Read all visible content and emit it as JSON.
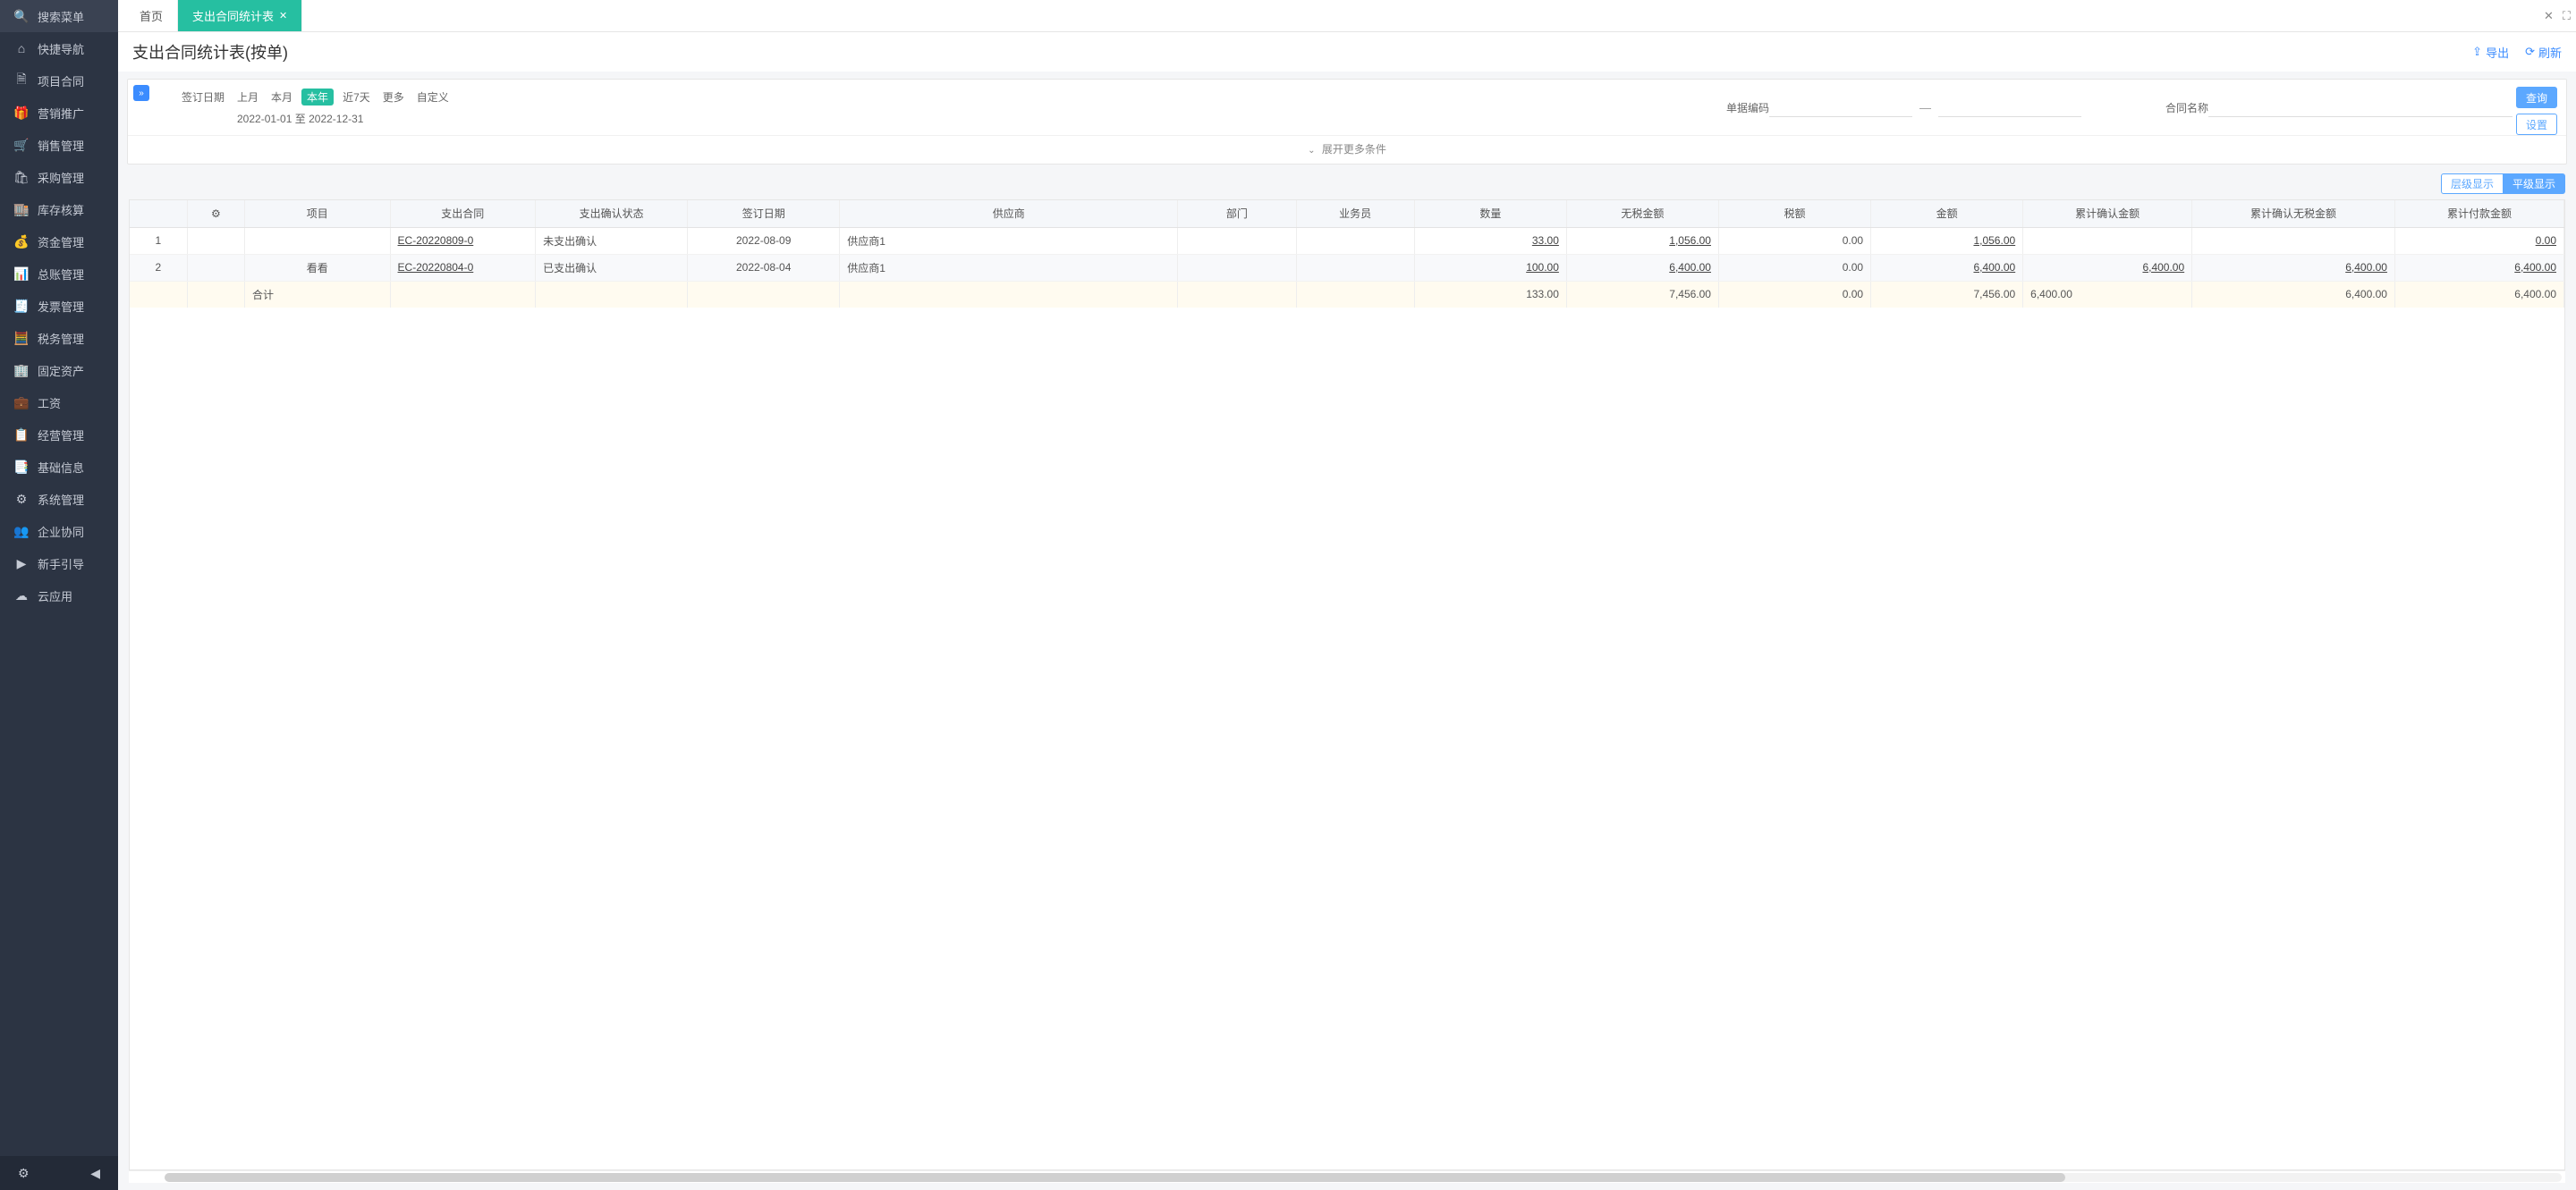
{
  "sidebar": {
    "items": [
      {
        "icon": "🔍",
        "label": "搜索菜单",
        "name": "sidebar-item-search"
      },
      {
        "icon": "⌂",
        "label": "快捷导航",
        "name": "sidebar-item-quicknav"
      },
      {
        "icon": "🗎",
        "label": "项目合同",
        "name": "sidebar-item-project-contract"
      },
      {
        "icon": "🎁",
        "label": "营销推广",
        "name": "sidebar-item-marketing"
      },
      {
        "icon": "🛒",
        "label": "销售管理",
        "name": "sidebar-item-sales"
      },
      {
        "icon": "🛍",
        "label": "采购管理",
        "name": "sidebar-item-purchase"
      },
      {
        "icon": "🏬",
        "label": "库存核算",
        "name": "sidebar-item-inventory"
      },
      {
        "icon": "💰",
        "label": "资金管理",
        "name": "sidebar-item-funds"
      },
      {
        "icon": "📊",
        "label": "总账管理",
        "name": "sidebar-item-ledger"
      },
      {
        "icon": "🧾",
        "label": "发票管理",
        "name": "sidebar-item-invoice"
      },
      {
        "icon": "🧮",
        "label": "税务管理",
        "name": "sidebar-item-tax"
      },
      {
        "icon": "🏢",
        "label": "固定资产",
        "name": "sidebar-item-assets"
      },
      {
        "icon": "💼",
        "label": "工资",
        "name": "sidebar-item-salary"
      },
      {
        "icon": "📋",
        "label": "经营管理",
        "name": "sidebar-item-operations"
      },
      {
        "icon": "📑",
        "label": "基础信息",
        "name": "sidebar-item-basicinfo"
      },
      {
        "icon": "⚙",
        "label": "系统管理",
        "name": "sidebar-item-system"
      },
      {
        "icon": "👥",
        "label": "企业协同",
        "name": "sidebar-item-collab"
      },
      {
        "icon": "▶",
        "label": "新手引导",
        "name": "sidebar-item-guide"
      },
      {
        "icon": "☁",
        "label": "云应用",
        "name": "sidebar-item-cloud"
      }
    ]
  },
  "tabs": {
    "items": [
      {
        "label": "首页",
        "active": false,
        "closable": false
      },
      {
        "label": "支出合同统计表",
        "active": true,
        "closable": true
      }
    ]
  },
  "page": {
    "title": "支出合同统计表(按单)"
  },
  "headerActions": {
    "export": "导出",
    "refresh": "刷新"
  },
  "filter": {
    "signDateLabel": "签订日期",
    "rangeOptions": {
      "lastMonth": "上月",
      "thisMonth": "本月",
      "thisYear": "本年",
      "last7": "近7天",
      "more": "更多",
      "custom": "自定义"
    },
    "dateFrom": "2022-01-01",
    "dateSep": "至",
    "dateTo": "2022-12-31",
    "docNoLabel": "单据编码",
    "contractNameLabel": "合同名称",
    "queryBtn": "查询",
    "settingBtn": "设置",
    "expandLabel": "展开更多条件"
  },
  "viewToggles": {
    "tree": "层级显示",
    "flat": "平级显示"
  },
  "table": {
    "columns": {
      "idx": "",
      "gear": "⚙",
      "project": "项目",
      "contract": "支出合同",
      "confirmStatus": "支出确认状态",
      "signDate": "签订日期",
      "supplier": "供应商",
      "dept": "部门",
      "salesperson": "业务员",
      "qty": "数量",
      "amountNoTax": "无税金额",
      "tax": "税额",
      "amount": "金额",
      "cumConfirmAmt": "累计确认金额",
      "cumConfirmNoTax": "累计确认无税金额",
      "cumPayAmt": "累计付款金额"
    },
    "rows": [
      {
        "idx": "1",
        "project": "",
        "contract": "EC-20220809-0",
        "confirmStatus": "未支出确认",
        "signDate": "2022-08-09",
        "supplier": "供应商1",
        "dept": "",
        "salesperson": "",
        "qty": "33.00",
        "amountNoTax": "1,056.00",
        "tax": "0.00",
        "amount": "1,056.00",
        "cumConfirmAmt": "",
        "cumConfirmNoTax": "",
        "cumPayAmt": "0.00"
      },
      {
        "idx": "2",
        "project": "看看",
        "contract": "EC-20220804-0",
        "confirmStatus": "已支出确认",
        "signDate": "2022-08-04",
        "supplier": "供应商1",
        "dept": "",
        "salesperson": "",
        "qty": "100.00",
        "amountNoTax": "6,400.00",
        "tax": "0.00",
        "amount": "6,400.00",
        "cumConfirmAmt": "6,400.00",
        "cumConfirmNoTax": "6,400.00",
        "cumPayAmt": "6,400.00"
      }
    ],
    "footer": {
      "label": "合计",
      "qty": "133.00",
      "amountNoTax": "7,456.00",
      "tax": "0.00",
      "amount": "7,456.00",
      "cumConfirmAmt": "6,400.00",
      "cumConfirmNoTax": "6,400.00",
      "cumPayAmt": "6,400.00"
    }
  },
  "colors": {
    "sidebarBg": "#2c3443",
    "accentGreen": "#26bfa1",
    "accentBlue": "#5ca8ff",
    "footerBg": "#fffbf0"
  }
}
